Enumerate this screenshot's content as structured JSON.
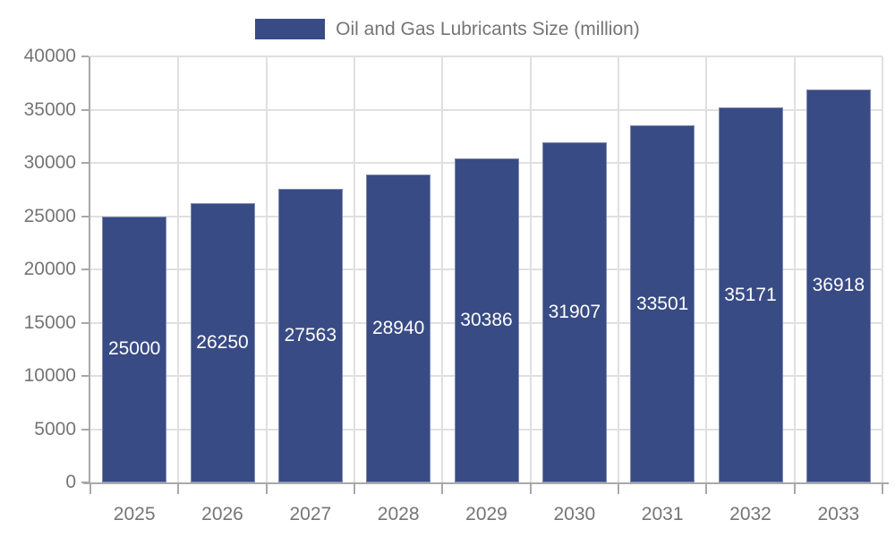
{
  "legend": {
    "label": "Oil and Gas Lubricants Size (million)"
  },
  "chart_data": {
    "type": "bar",
    "title": "Oil and Gas Lubricants Size (million)",
    "series_name": "Oil and Gas Lubricants Size (million)",
    "categories": [
      "2025",
      "2026",
      "2027",
      "2028",
      "2029",
      "2030",
      "2031",
      "2032",
      "2033"
    ],
    "values": [
      25000,
      26250,
      27563,
      28940,
      30386,
      31907,
      33501,
      35171,
      36918
    ],
    "value_labels": [
      "25000",
      "26250",
      "27563",
      "28940",
      "30386",
      "31907",
      "33501",
      "35171",
      "36918"
    ],
    "xlabel": "",
    "ylabel": "",
    "ylim": [
      0,
      40000
    ],
    "ytick_interval": 5000,
    "yticks": [
      0,
      5000,
      10000,
      15000,
      20000,
      25000,
      30000,
      35000,
      40000
    ],
    "grid": true,
    "legend_position": "top-center",
    "value_label_position": "inside-center",
    "colors": {
      "bar": "#394B85",
      "bar_border": "rgba(255,255,255,0.35)",
      "value_text": "#ffffff",
      "axis_text": "#757575",
      "gridline": "#e0e0e0",
      "axis_line": "#a8a8a8",
      "background": "#ffffff"
    }
  }
}
